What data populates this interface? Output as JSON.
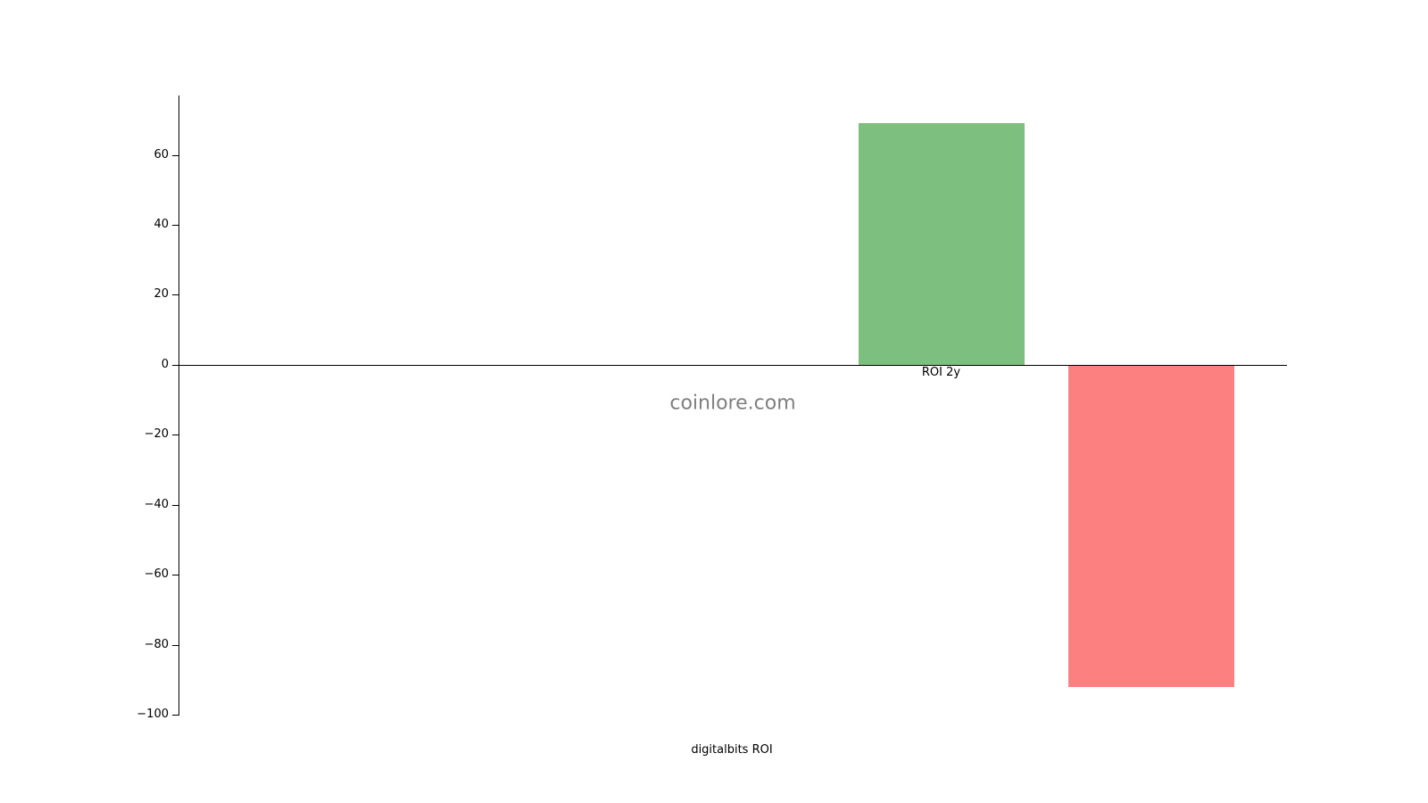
{
  "chart_data": {
    "type": "bar",
    "title": "",
    "xlabel": "digitalbits ROI",
    "ylabel": "",
    "categories": [
      "ROI 2y",
      ""
    ],
    "values": [
      69,
      -92
    ],
    "bar_colors": [
      "#7dbf7e",
      "#fd8080"
    ],
    "ylim": [
      -100,
      77
    ],
    "yticks": [
      60,
      40,
      20,
      0,
      -20,
      -40,
      -60,
      -80,
      -100
    ],
    "ytick_labels": [
      "60",
      "40",
      "20",
      "0",
      "−20",
      "−40",
      "−60",
      "−80",
      "−100"
    ],
    "grid": false,
    "legend_position": "none",
    "axis_color": "#000000",
    "background": "#ffffff"
  },
  "watermark": {
    "text": "coinlore.com",
    "color": "#7f7f7f"
  }
}
